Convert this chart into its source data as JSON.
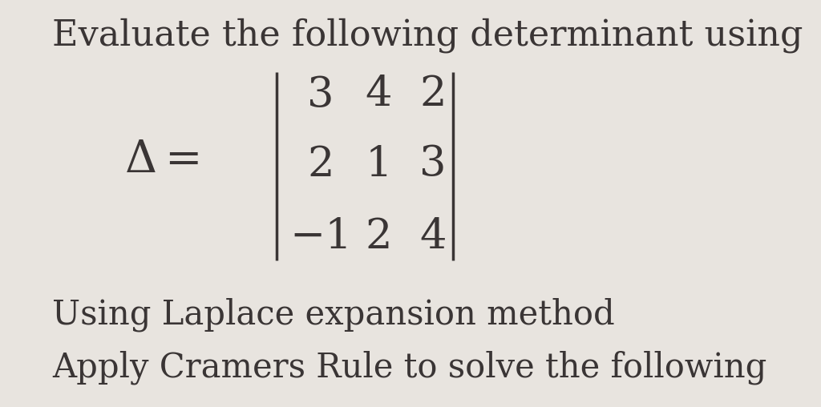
{
  "title_line": "Evaluate the following determinant using",
  "delta_label": "$\\Delta =$",
  "matrix": [
    [
      "3",
      "4",
      "2"
    ],
    [
      "2",
      "1",
      "3"
    ],
    [
      "-1",
      "2",
      "4"
    ]
  ],
  "matrix_display": [
    [
      "3",
      "4",
      "2"
    ],
    [
      "2",
      "1",
      "3"
    ],
    [
      "−1",
      "2",
      "4"
    ]
  ],
  "line3": "Using Laplace expansion method",
  "line4": "Apply Cramers Rule to solve the following",
  "bg_color": "#e8e4df",
  "text_color": "#3a3535",
  "title_fontsize": 32,
  "body_fontsize": 30,
  "matrix_fontsize": 38,
  "delta_fontsize": 40
}
